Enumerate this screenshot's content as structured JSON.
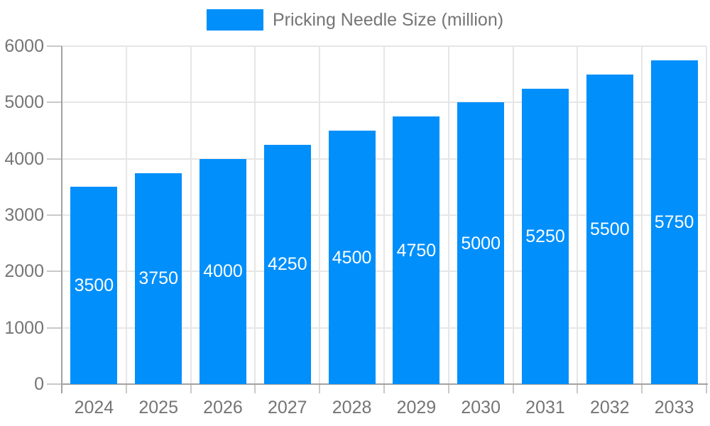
{
  "legend": {
    "label": "Pricking Needle Size (million)"
  },
  "chart_data": {
    "type": "bar",
    "title": "Pricking Needle Size (million)",
    "categories": [
      "2024",
      "2025",
      "2026",
      "2027",
      "2028",
      "2029",
      "2030",
      "2031",
      "2032",
      "2033"
    ],
    "values": [
      3500,
      3750,
      4000,
      4250,
      4500,
      4750,
      5000,
      5250,
      5500,
      5750
    ],
    "series": [
      {
        "name": "Pricking Needle Size (million)",
        "values": [
          3500,
          3750,
          4000,
          4250,
          4500,
          4750,
          5000,
          5250,
          5500,
          5750
        ]
      }
    ],
    "xlabel": "",
    "ylabel": "",
    "ylim": [
      0,
      6000
    ],
    "ytick_step": 1000,
    "ytick_labels": [
      "0",
      "1000",
      "2000",
      "3000",
      "4000",
      "5000",
      "6000"
    ],
    "grid": true,
    "legend_position": "top",
    "data_labels": "inside-center"
  },
  "colors": {
    "bar": "#008FFB",
    "data_label_text": "#ffffff",
    "axis_text": "#757575",
    "legend_text": "#757575",
    "gridline": "#e6e6e6",
    "axis_line": "#a2a2a2",
    "tick": "#c9c9c9",
    "background": "#ffffff"
  }
}
